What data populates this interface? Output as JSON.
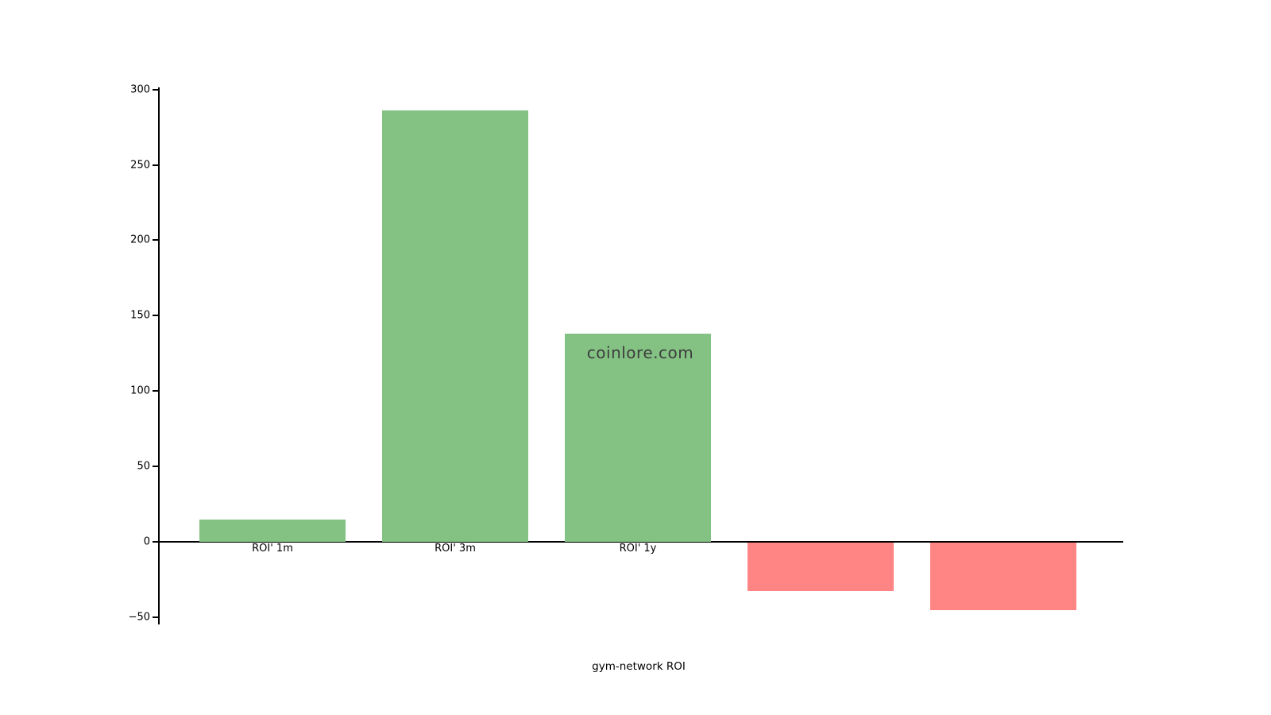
{
  "chart_data": {
    "type": "bar",
    "title": "gym-network ROI",
    "watermark": "coinlore.com",
    "categories": [
      "ROI' 1m",
      "ROI' 3m",
      "ROI' 1y",
      "",
      ""
    ],
    "values": [
      15,
      286,
      138,
      -32,
      -45
    ],
    "yticks": [
      300,
      250,
      200,
      150,
      100,
      50,
      0,
      -50
    ],
    "ylim": [
      -55,
      302
    ],
    "xlabel": "",
    "ylabel": "",
    "grid": false,
    "legend": "none",
    "colors": {
      "positive_bar": "#84c284",
      "negative_bar": "#ff8484",
      "axis": "#000000",
      "tick_text": "#000000",
      "watermark_text": "#3d3d3d",
      "background": "#ffffff"
    }
  }
}
